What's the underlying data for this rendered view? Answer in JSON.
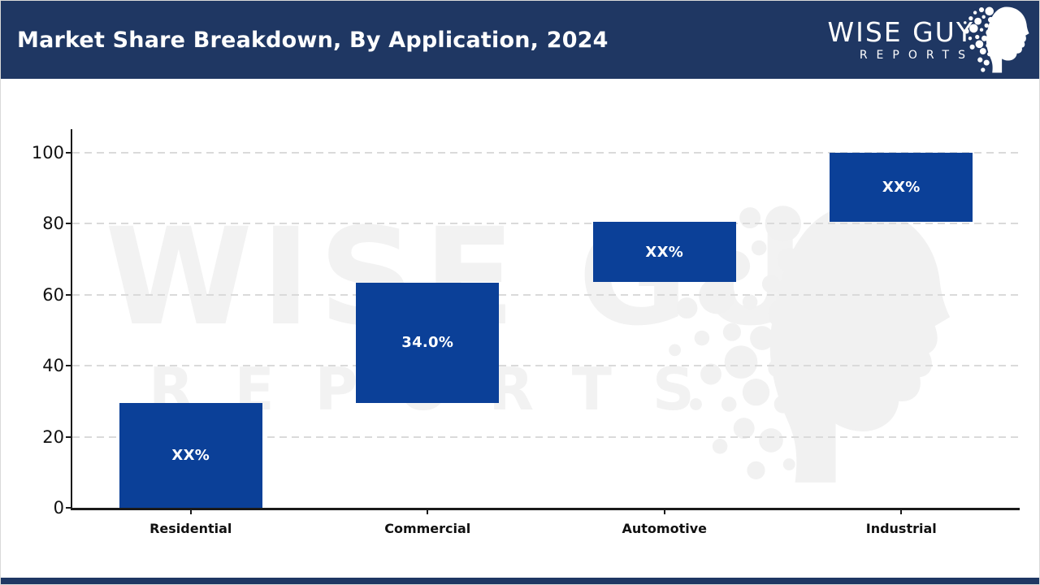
{
  "header": {
    "title": "Market Share Breakdown, By Application, 2024",
    "logo": {
      "line1": "WISE GUY",
      "line2": "REPORTS"
    }
  },
  "watermark": {
    "line1": "WISE GUY",
    "line2": "REPORTS"
  },
  "colors": {
    "header_bg": "#1F3763",
    "footer_bg": "#1F3763",
    "bar": "#0B4098",
    "bar_label": "#FFFFFF",
    "gridline": "#DADADA",
    "axis": "#1A1A1A",
    "watermark": "#F2F2F2"
  },
  "chart_data": {
    "type": "bar",
    "subtype": "floating-waterfall",
    "title": "Market Share Breakdown, By Application, 2024",
    "categories": [
      "Residential",
      "Commercial",
      "Automotive",
      "Industrial"
    ],
    "series": [
      {
        "name": "Market Share (%)",
        "starts": [
          0,
          29.5,
          63.5,
          80.5
        ],
        "values": [
          29.5,
          34.0,
          17.0,
          19.5
        ]
      }
    ],
    "bar_labels": [
      "XX%",
      "34.0%",
      "XX%",
      "XX%"
    ],
    "xlabel": "",
    "ylabel": "",
    "yticks": [
      0,
      20,
      40,
      60,
      80,
      100
    ],
    "ylim": [
      0,
      106
    ],
    "grid": "horizontal-dashed",
    "legend": "none"
  }
}
